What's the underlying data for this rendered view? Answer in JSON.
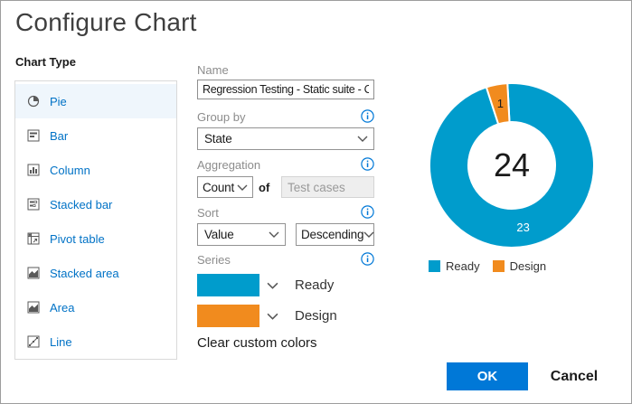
{
  "dialog": {
    "title": "Configure Chart"
  },
  "chart_type": {
    "label": "Chart Type",
    "items": [
      {
        "label": "Pie",
        "icon": "pie-icon",
        "selected": true
      },
      {
        "label": "Bar",
        "icon": "bar-icon",
        "selected": false
      },
      {
        "label": "Column",
        "icon": "column-icon",
        "selected": false
      },
      {
        "label": "Stacked bar",
        "icon": "stacked-bar-icon",
        "selected": false
      },
      {
        "label": "Pivot table",
        "icon": "pivot-table-icon",
        "selected": false
      },
      {
        "label": "Stacked area",
        "icon": "stacked-area-icon",
        "selected": false
      },
      {
        "label": "Area",
        "icon": "area-icon",
        "selected": false
      },
      {
        "label": "Line",
        "icon": "line-icon",
        "selected": false
      }
    ]
  },
  "form": {
    "name": {
      "label": "Name",
      "value": "Regression Testing - Static suite - Ch"
    },
    "group_by": {
      "label": "Group by",
      "value": "State"
    },
    "aggregation": {
      "label": "Aggregation",
      "value": "Count",
      "of_text": "of",
      "field_value": "Test cases"
    },
    "sort": {
      "label": "Sort",
      "value": "Value",
      "direction": "Descending"
    },
    "series": {
      "label": "Series",
      "clear_label": "Clear custom colors",
      "items": [
        {
          "name": "Ready",
          "color": "#009CCC"
        },
        {
          "name": "Design",
          "color": "#F18B1E"
        }
      ]
    }
  },
  "buttons": {
    "ok": "OK",
    "cancel": "Cancel"
  },
  "chart_data": {
    "type": "pie",
    "style": "donut",
    "title": "",
    "center_label": "24",
    "total": 24,
    "start_angle_deg": -3,
    "series": [
      {
        "name": "Ready",
        "value": 23,
        "color": "#009CCC",
        "label_color": "#ffffff"
      },
      {
        "name": "Design",
        "value": 1,
        "color": "#F18B1E",
        "label_color": "#1a1a1a"
      }
    ],
    "legend_position": "bottom"
  }
}
